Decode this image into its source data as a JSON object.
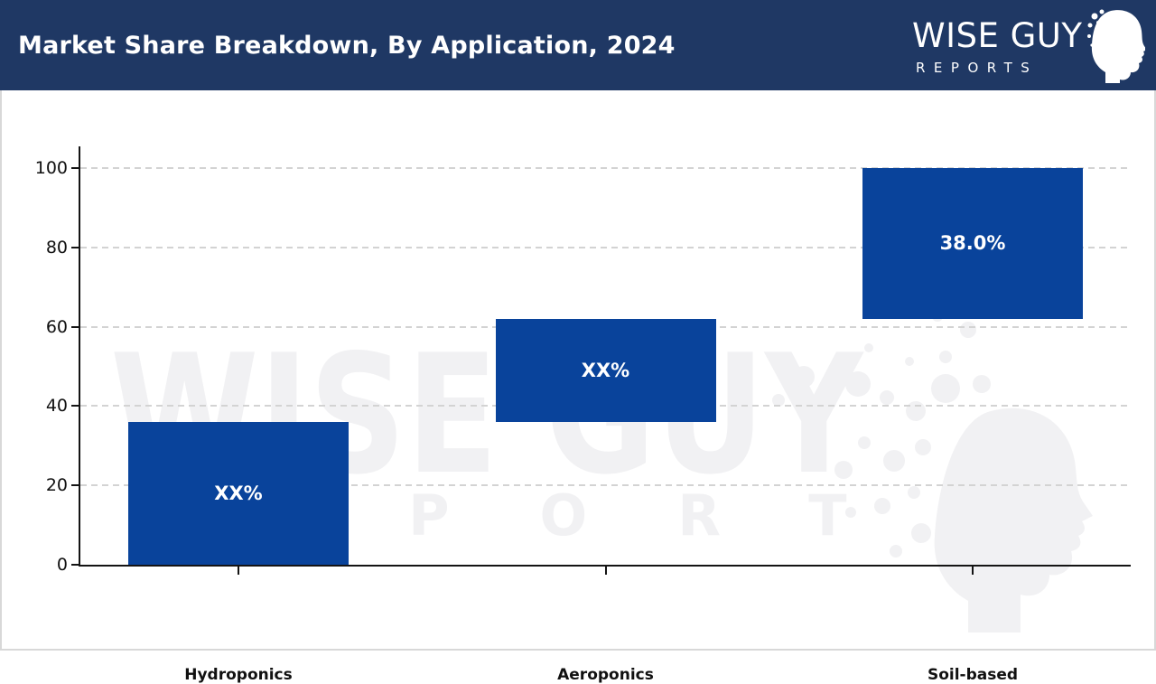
{
  "header": {
    "title": "Market Share Breakdown, By Application, 2024",
    "logo": {
      "line1": "WISE GUY",
      "line2": "REPORTS"
    }
  },
  "watermark": {
    "line1": "WISE GUY",
    "line2": "REPORTS"
  },
  "chart_data": {
    "type": "bar",
    "variant": "waterfall-breakdown",
    "title": "Market Share Breakdown, By Application, 2024",
    "categories": [
      "Hydroponics",
      "Aeroponics",
      "Soil-based"
    ],
    "series": [
      {
        "name": "Hydroponics",
        "start": 0,
        "end": 36,
        "value": 36,
        "label": "XX%"
      },
      {
        "name": "Aeroponics",
        "start": 36,
        "end": 62,
        "value": 26,
        "label": "XX%"
      },
      {
        "name": "Soil-based",
        "start": 62,
        "end": 100,
        "value": 38,
        "label": "38.0%"
      }
    ],
    "xlabel": "",
    "ylabel": "",
    "yticks": [
      0,
      20,
      40,
      60,
      80,
      100
    ],
    "ylim": [
      0,
      105.5
    ],
    "grid": {
      "axis": "y",
      "style": "dashed",
      "color": "#d3d3d3"
    },
    "legend": null,
    "bar_color": "#09439b",
    "bar_label_color": "#ffffff"
  },
  "colors": {
    "header_bg": "#1f3864",
    "bar": "#09439b",
    "watermark": "#f1f1f3",
    "grid": "#d3d3d3",
    "axis": "#141414",
    "edge_border": "#d8d8d8"
  }
}
